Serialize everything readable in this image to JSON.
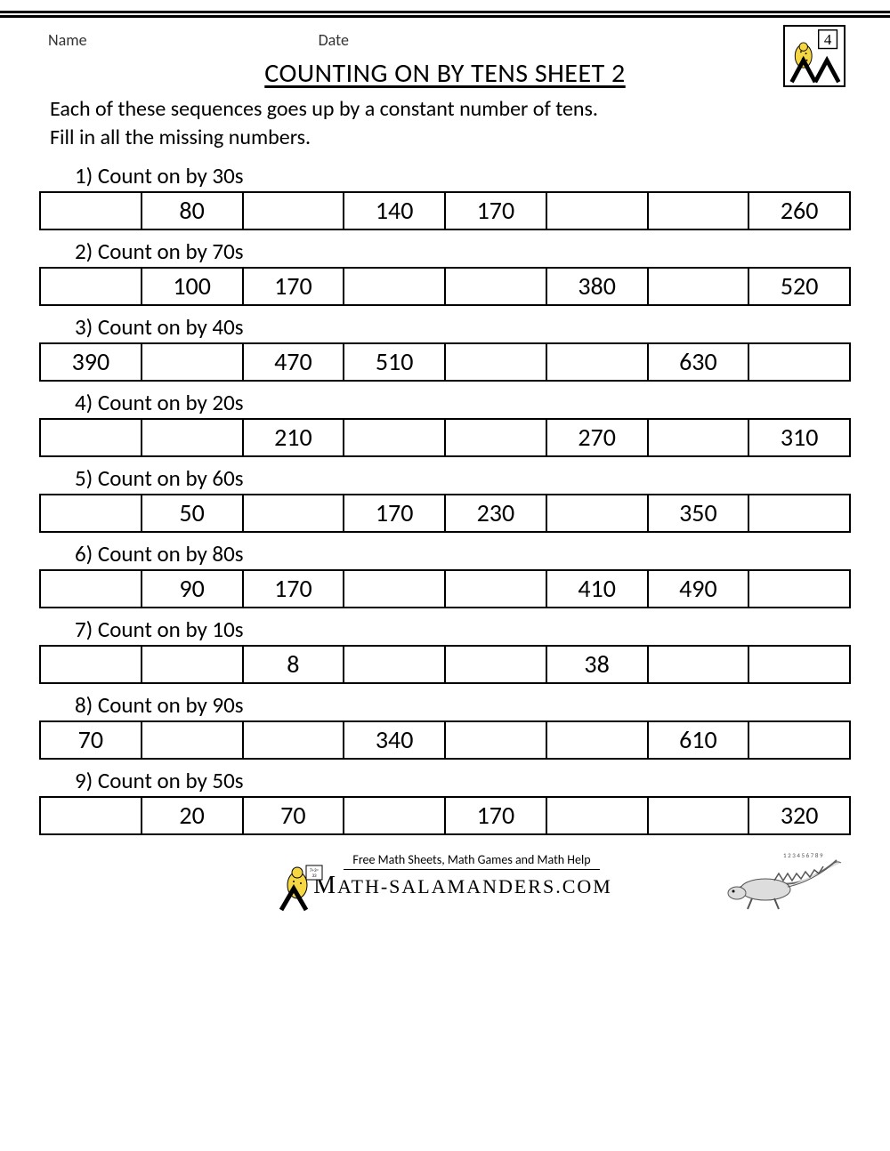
{
  "header": {
    "name_label": "Name",
    "date_label": "Date",
    "grade_badge": "4"
  },
  "title": "COUNTING ON BY TENS SHEET 2",
  "instructions_line1": "Each of these sequences goes up by a constant number of tens.",
  "instructions_line2": "Fill in all the missing numbers.",
  "problems": [
    {
      "n": "1)",
      "label": "Count on by 30s",
      "cells": [
        "",
        "80",
        "",
        "140",
        "170",
        "",
        "",
        "260"
      ]
    },
    {
      "n": "2)",
      "label": "Count on by 70s",
      "cells": [
        "",
        "100",
        "170",
        "",
        "",
        "380",
        "",
        "520"
      ]
    },
    {
      "n": "3)",
      "label": "Count on by 40s",
      "cells": [
        "390",
        "",
        "470",
        "510",
        "",
        "",
        "630",
        ""
      ]
    },
    {
      "n": "4)",
      "label": "Count on by 20s",
      "cells": [
        "",
        "",
        "210",
        "",
        "",
        "270",
        "",
        "310"
      ]
    },
    {
      "n": "5)",
      "label": "Count on by 60s",
      "cells": [
        "",
        "50",
        "",
        "170",
        "230",
        "",
        "350",
        ""
      ]
    },
    {
      "n": "6)",
      "label": "Count on by 80s",
      "cells": [
        "",
        "90",
        "170",
        "",
        "",
        "410",
        "490",
        ""
      ]
    },
    {
      "n": "7)",
      "label": "Count on by 10s",
      "cells": [
        "",
        "",
        "8",
        "",
        "",
        "38",
        "",
        ""
      ]
    },
    {
      "n": "8)",
      "label": "Count on by 90s",
      "cells": [
        "70",
        "",
        "",
        "340",
        "",
        "",
        "610",
        ""
      ]
    },
    {
      "n": "9)",
      "label": "Count on by 50s",
      "cells": [
        "",
        "20",
        "70",
        "",
        "170",
        "",
        "",
        "320"
      ]
    }
  ],
  "footer": {
    "line1": "Free Math Sheets, Math Games and Math Help",
    "line2": "ATH-SALAMANDERS.COM"
  },
  "style": {
    "cell_border_color": "#000000",
    "cell_font_size": 28,
    "label_font_size": 25,
    "title_font_size": 30,
    "columns": 8,
    "background": "#ffffff"
  }
}
